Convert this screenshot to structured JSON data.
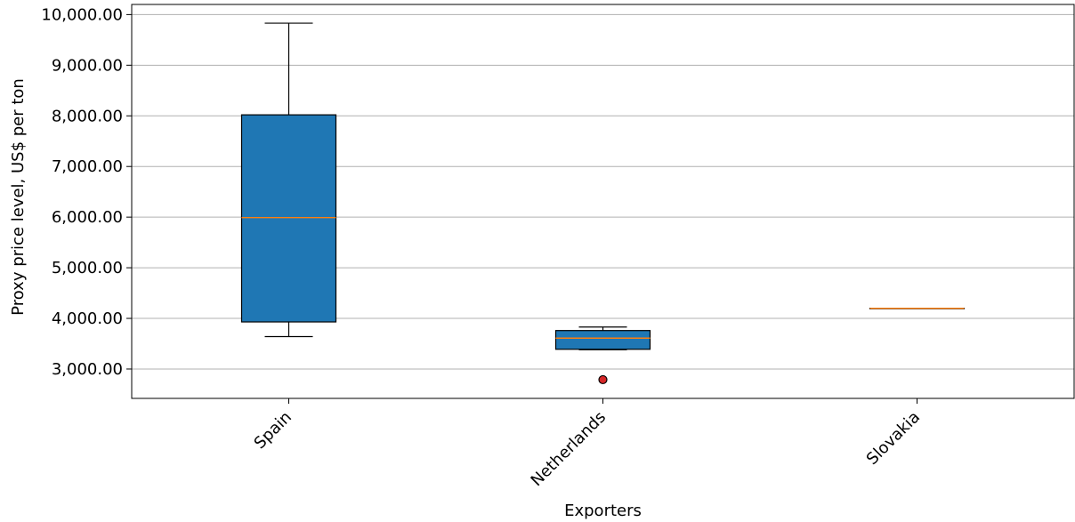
{
  "chart_data": {
    "type": "box",
    "xlabel": "Exporters",
    "ylabel": "Proxy price level, US$ per ton",
    "ylim": [
      2420,
      10200
    ],
    "grid": "y",
    "yticks": [
      {
        "value": 3000,
        "label": "3,000.00"
      },
      {
        "value": 4000,
        "label": "4,000.00"
      },
      {
        "value": 5000,
        "label": "5,000.00"
      },
      {
        "value": 6000,
        "label": "6,000.00"
      },
      {
        "value": 7000,
        "label": "7,000.00"
      },
      {
        "value": 8000,
        "label": "8,000.00"
      },
      {
        "value": 9000,
        "label": "9,000.00"
      },
      {
        "value": 10000,
        "label": "10,000.00"
      }
    ],
    "categories": [
      "Spain",
      "Netherlands",
      "Slovakia"
    ],
    "boxes": [
      {
        "category": "Spain",
        "whisker_low": 3640,
        "q1": 3930,
        "median": 5990,
        "q3": 8020,
        "whisker_high": 9830,
        "outliers": []
      },
      {
        "category": "Netherlands",
        "whisker_low": 3380,
        "q1": 3390,
        "median": 3610,
        "q3": 3760,
        "whisker_high": 3830,
        "outliers": [
          2790
        ]
      },
      {
        "category": "Slovakia",
        "whisker_low": 4200,
        "q1": 4200,
        "median": 4200,
        "q3": 4200,
        "whisker_high": 4200,
        "outliers": []
      }
    ],
    "colors": {
      "box_fill": "#1f77b4",
      "median": "#ff7f0e",
      "outlier_fill": "#d62728",
      "grid": "#b0b0b0"
    }
  }
}
